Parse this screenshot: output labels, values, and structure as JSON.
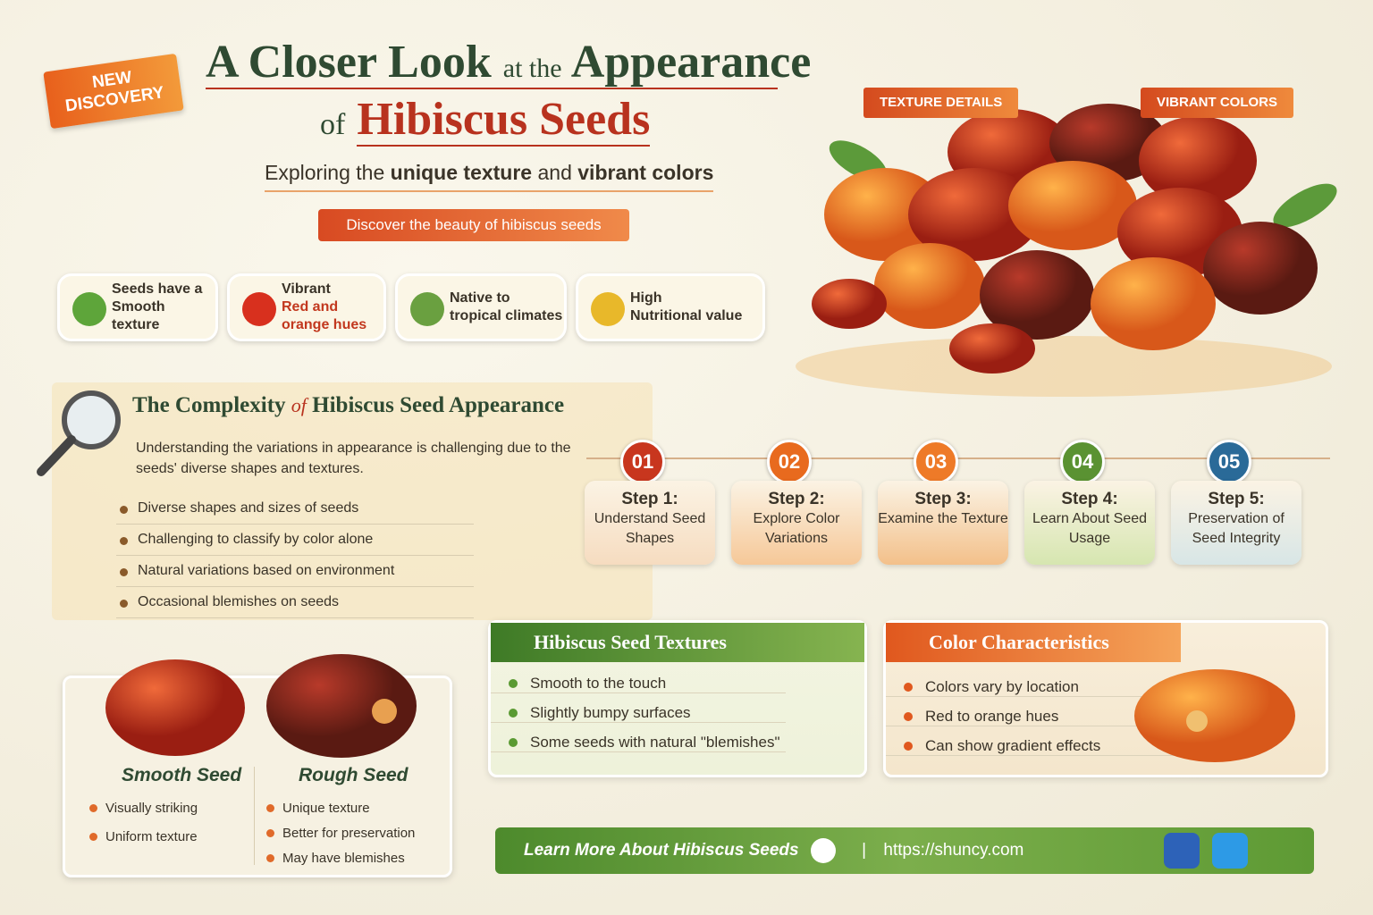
{
  "badge": [
    "NEW",
    "DISCOVERY"
  ],
  "header": {
    "title_line1": [
      "A Closer Look",
      "at the",
      "Appearance"
    ],
    "title_line2": [
      "of",
      "Hibiscus Seeds"
    ],
    "subtitle": [
      "Exploring the",
      "unique texture",
      "and",
      "vibrant colors"
    ],
    "tagline": "Discover the beauty of hibiscus seeds"
  },
  "image_tags": [
    "TEXTURE DETAILS",
    "VIBRANT COLORS"
  ],
  "features": [
    {
      "title": "Seeds have a",
      "text": "Smooth texture"
    },
    {
      "title": "Vibrant",
      "text": "Red and orange hues"
    },
    {
      "title": "Native to",
      "text": "tropical climates"
    },
    {
      "title": "High",
      "text": "Nutritional value"
    }
  ],
  "complexity": {
    "title": [
      "The Complexity",
      "of",
      "Hibiscus Seed Appearance"
    ],
    "description": "Understanding the variations in appearance is challenging due to the seeds' diverse shapes and textures.",
    "bullets": [
      "Diverse shapes and sizes of seeds",
      "Challenging to classify by color alone",
      "Natural variations based on environment",
      "Occasional blemishes on seeds"
    ]
  },
  "steps": [
    {
      "number": "01",
      "label": "Step 1:",
      "text": "Understand Seed Shapes"
    },
    {
      "number": "02",
      "label": "Step 2:",
      "text": "Explore Color Variations"
    },
    {
      "number": "03",
      "label": "Step 3:",
      "text": "Examine the Texture"
    },
    {
      "number": "04",
      "label": "Step 4:",
      "text": "Learn About Seed Usage"
    },
    {
      "number": "05",
      "label": "Step 5:",
      "text": "Preservation of Seed Integrity"
    }
  ],
  "comparison": [
    {
      "title": "Smooth Seed",
      "points": [
        "Visually striking",
        "Uniform texture"
      ]
    },
    {
      "title": "Rough Seed",
      "points": [
        "Unique texture",
        "Better for preservation",
        "May have blemishes"
      ]
    }
  ],
  "textures": {
    "title": "Hibiscus Seed Textures",
    "points": [
      "Smooth to the touch",
      "Slightly bumpy surfaces",
      "Some seeds with natural \"blemishes\""
    ]
  },
  "colors": {
    "title": "Color Characteristics",
    "points": [
      "Colors vary by location",
      "Red to orange hues",
      "Can show gradient effects"
    ]
  },
  "footer": {
    "cta": "Learn More About Hibiscus Seeds",
    "url": "https://shuncy.com"
  }
}
